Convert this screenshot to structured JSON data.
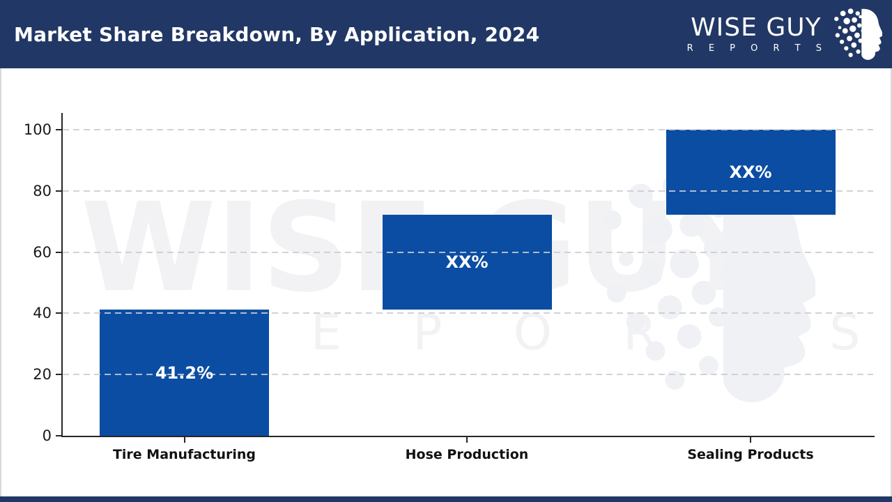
{
  "header": {
    "title": "Market Share Breakdown, By Application, 2024",
    "logo": {
      "name": "WISE GUY",
      "tagline": "R E P O R T S"
    }
  },
  "watermark": {
    "name": "WISE GUY",
    "tagline": "R E P O R T S"
  },
  "chart_data": {
    "type": "bar",
    "subtype": "stacked-waterfall",
    "title": "Market Share Breakdown, By Application, 2024",
    "categories": [
      "Tire Manufacturing",
      "Hose Production",
      "Sealing Products"
    ],
    "segments": [
      {
        "category": "Tire Manufacturing",
        "start": 0,
        "end": 41.2,
        "value": 41.2,
        "label": "41.2%"
      },
      {
        "category": "Hose Production",
        "start": 41.2,
        "end": 72.2,
        "value": 31.0,
        "label": "XX%"
      },
      {
        "category": "Sealing Products",
        "start": 72.2,
        "end": 100,
        "value": 27.8,
        "label": "XX%"
      }
    ],
    "xlabel": "",
    "ylabel": "",
    "ylim": [
      0,
      100
    ],
    "yticks": [
      0,
      20,
      40,
      60,
      80,
      100
    ],
    "grid": {
      "horizontal": true,
      "style": "dashed",
      "color": "#d8d8d8"
    },
    "legend": "none",
    "bar_color": "#0b4da2",
    "bar_label_color": "#ffffff",
    "axis_color": "#262626",
    "tick_label_color": "#1a1a1a"
  },
  "colors": {
    "header_bg": "#213765",
    "footer_bg": "#213765",
    "page_bg": "#ffffff",
    "watermark": "#f2f2f4",
    "border": "#d9d9d9"
  }
}
